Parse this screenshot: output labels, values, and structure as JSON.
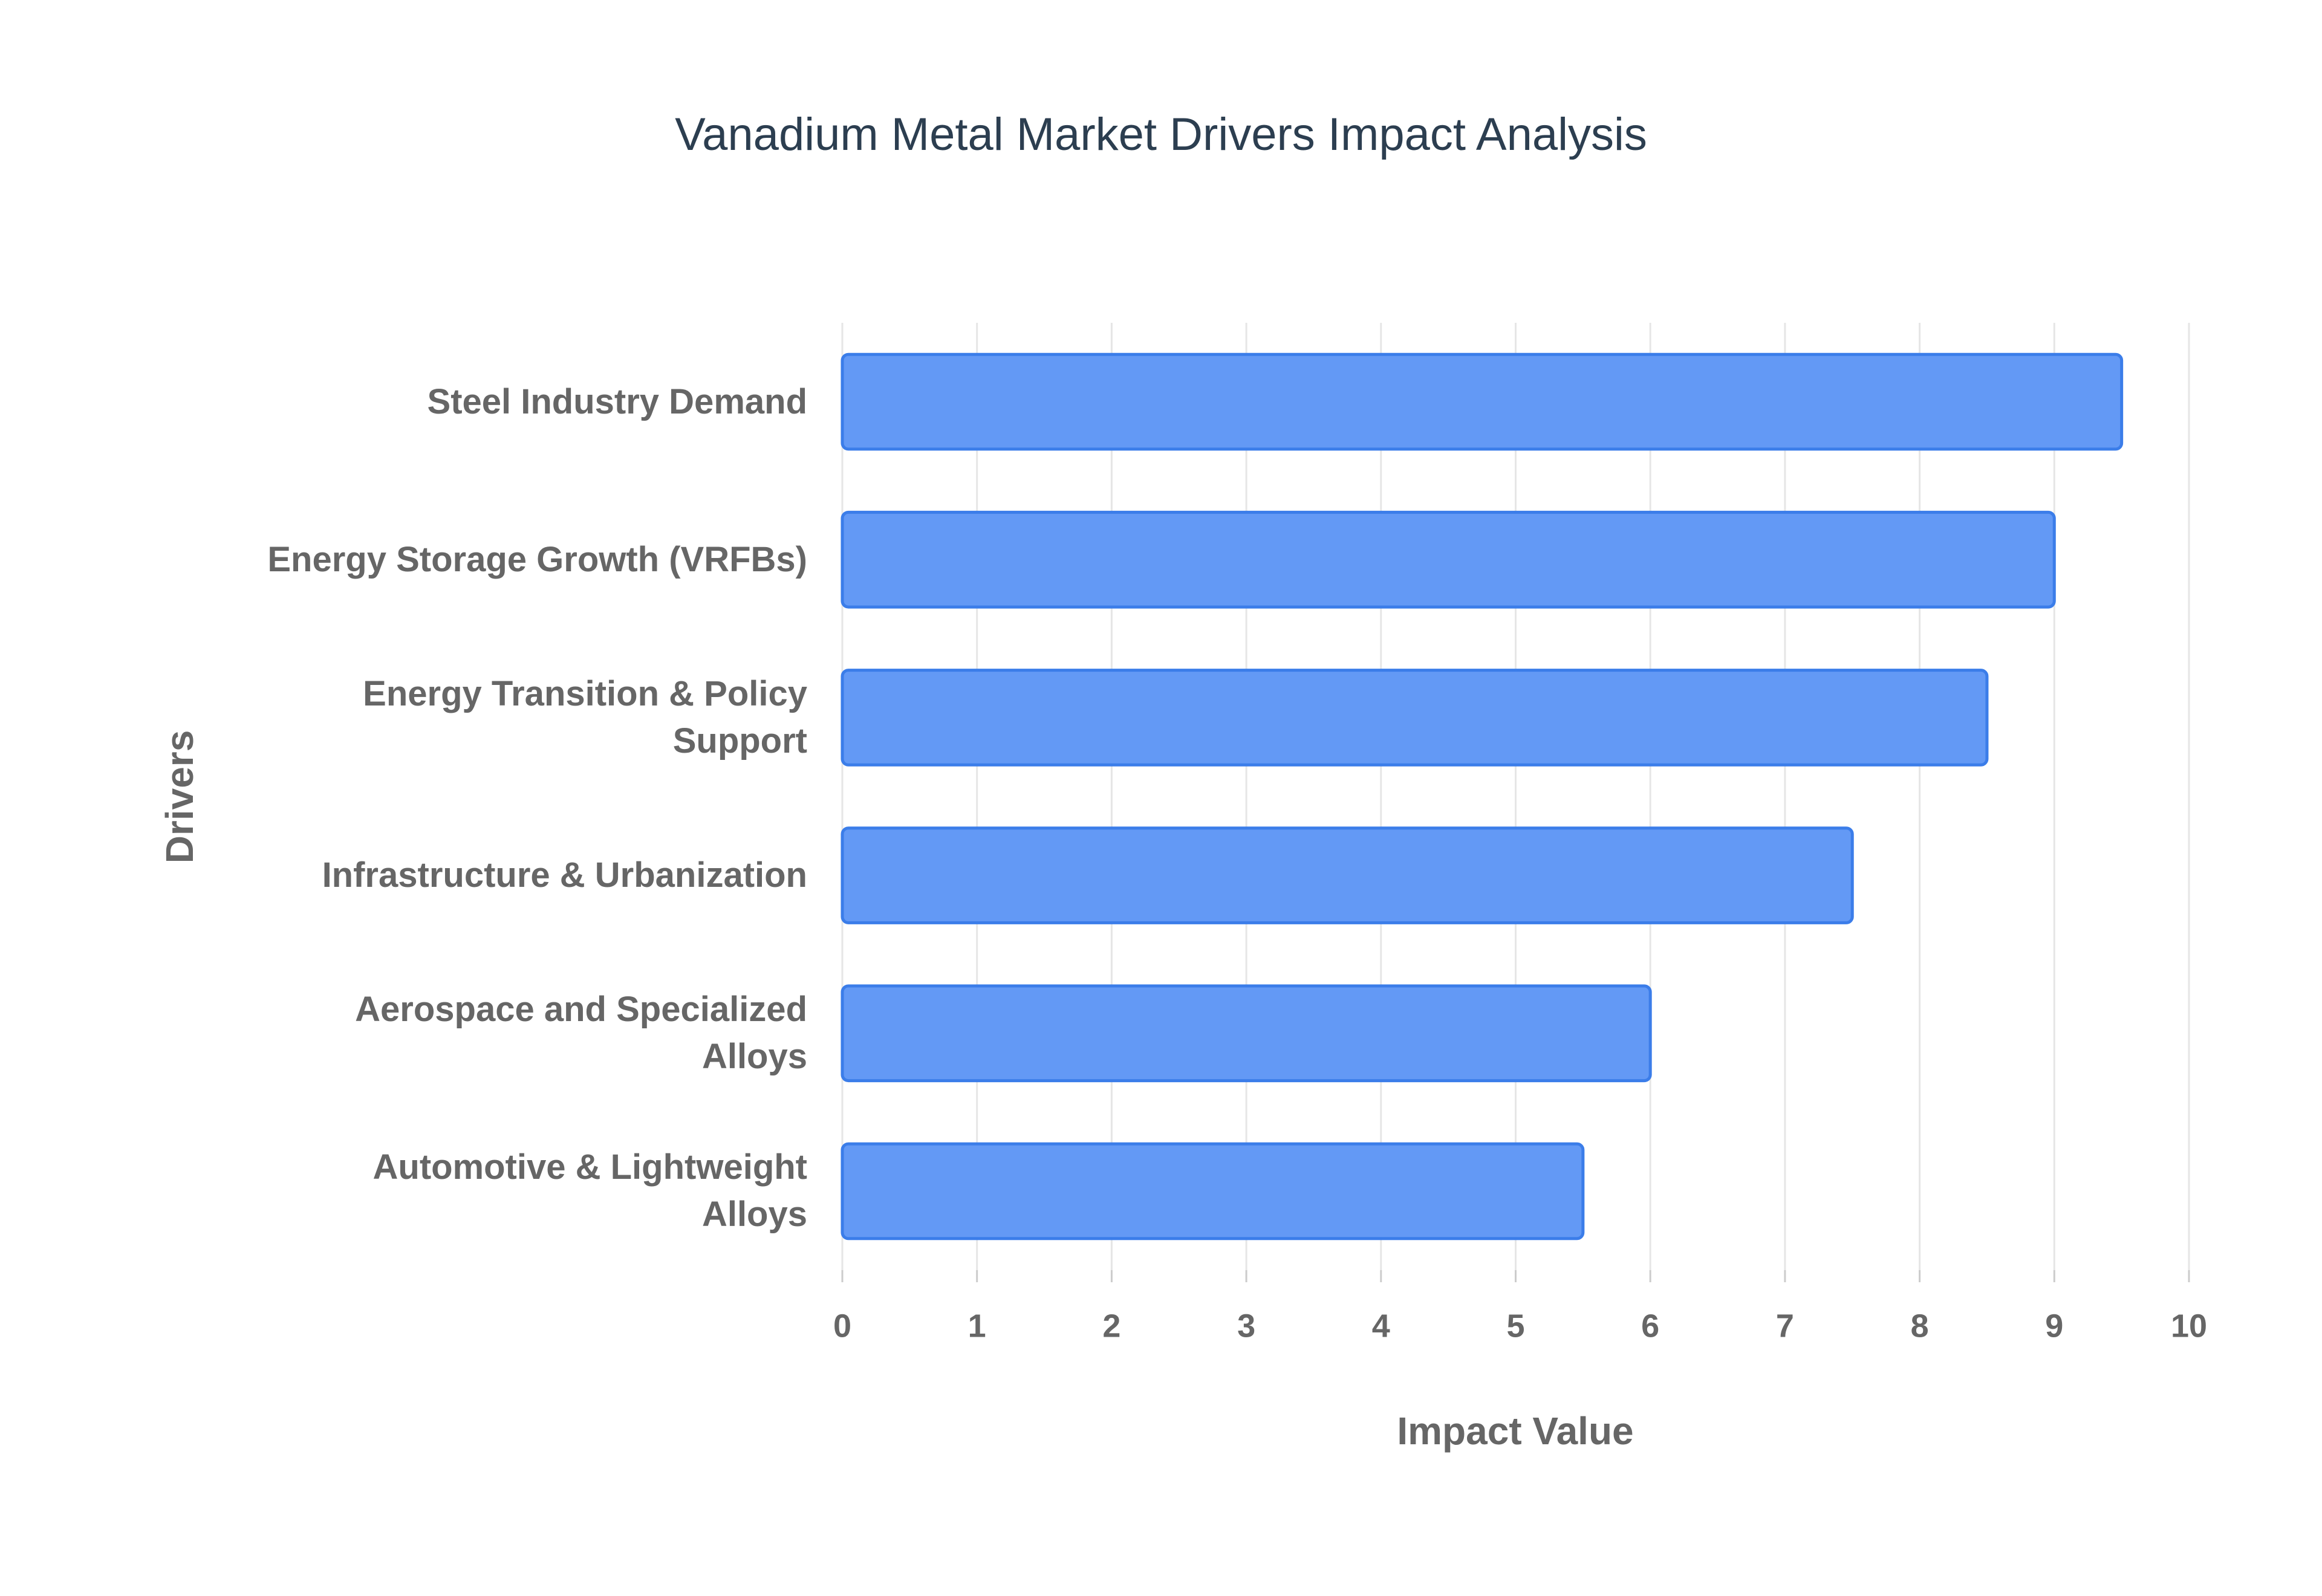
{
  "chart_data": {
    "type": "bar",
    "orientation": "horizontal",
    "title": "Vanadium Metal Market Drivers Impact Analysis",
    "xlabel": "Impact Value",
    "ylabel": "Drivers",
    "categories": [
      "Steel Industry Demand",
      "Energy Storage Growth (VRFBs)",
      "Energy Transition & Policy Support",
      "Infrastructure & Urbanization",
      "Aerospace and Specialized Alloys",
      "Automotive & Lightweight Alloys"
    ],
    "values": [
      9.5,
      9,
      8.5,
      7.5,
      6,
      5.5
    ],
    "color": "#6399f5",
    "edge_color": "#3b7de9",
    "xlim": [
      0,
      10
    ],
    "xticks": [
      0,
      1,
      2,
      3,
      4,
      5,
      6,
      7,
      8,
      9,
      10
    ],
    "grid": true
  }
}
